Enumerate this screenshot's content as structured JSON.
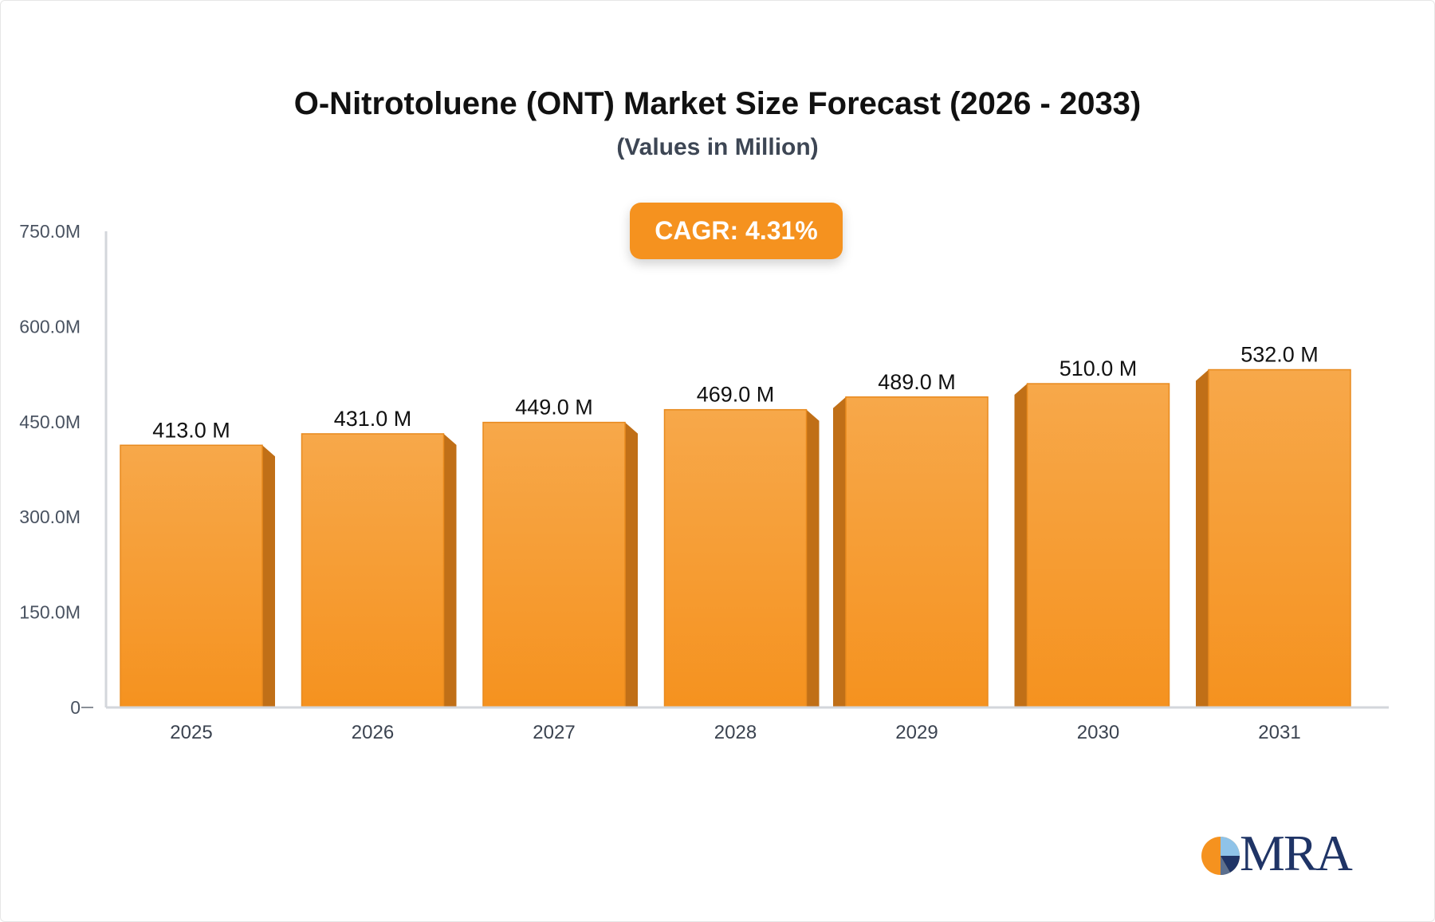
{
  "chart_data": {
    "type": "bar",
    "title": "O-Nitrotoluene (ONT) Market Size Forecast (2026 - 2033)",
    "subtitle": "(Values in Million)",
    "annotation": "CAGR: 4.31%",
    "categories": [
      "2025",
      "2026",
      "2027",
      "2028",
      "2029",
      "2030",
      "2031"
    ],
    "values": [
      413.0,
      431.0,
      449.0,
      469.0,
      489.0,
      510.0,
      532.0
    ],
    "data_labels": [
      "413.0 M",
      "431.0 M",
      "449.0 M",
      "469.0 M",
      "489.0 M",
      "510.0 M",
      "532.0 M"
    ],
    "yticks": [
      0,
      150,
      300,
      450,
      600,
      750
    ],
    "ytick_labels": [
      "0",
      "150.0M",
      "300.0M",
      "450.0M",
      "600.0M",
      "750.0M"
    ],
    "ylim": [
      0,
      750
    ],
    "xlabel": "",
    "ylabel": "",
    "grid": false,
    "bar_style": "3d",
    "colors": {
      "bar_top": "#f7a84a",
      "bar_bottom": "#f5921f",
      "bar_side": "#c06f17",
      "bar_edge": "#e88a1e",
      "axis": "#d3d6db",
      "badge": "#f5921f"
    }
  },
  "logo": {
    "text": "MRA",
    "colors": [
      "#f5921f",
      "#1f3466",
      "#5b6f8f",
      "#8fc3e8"
    ]
  }
}
